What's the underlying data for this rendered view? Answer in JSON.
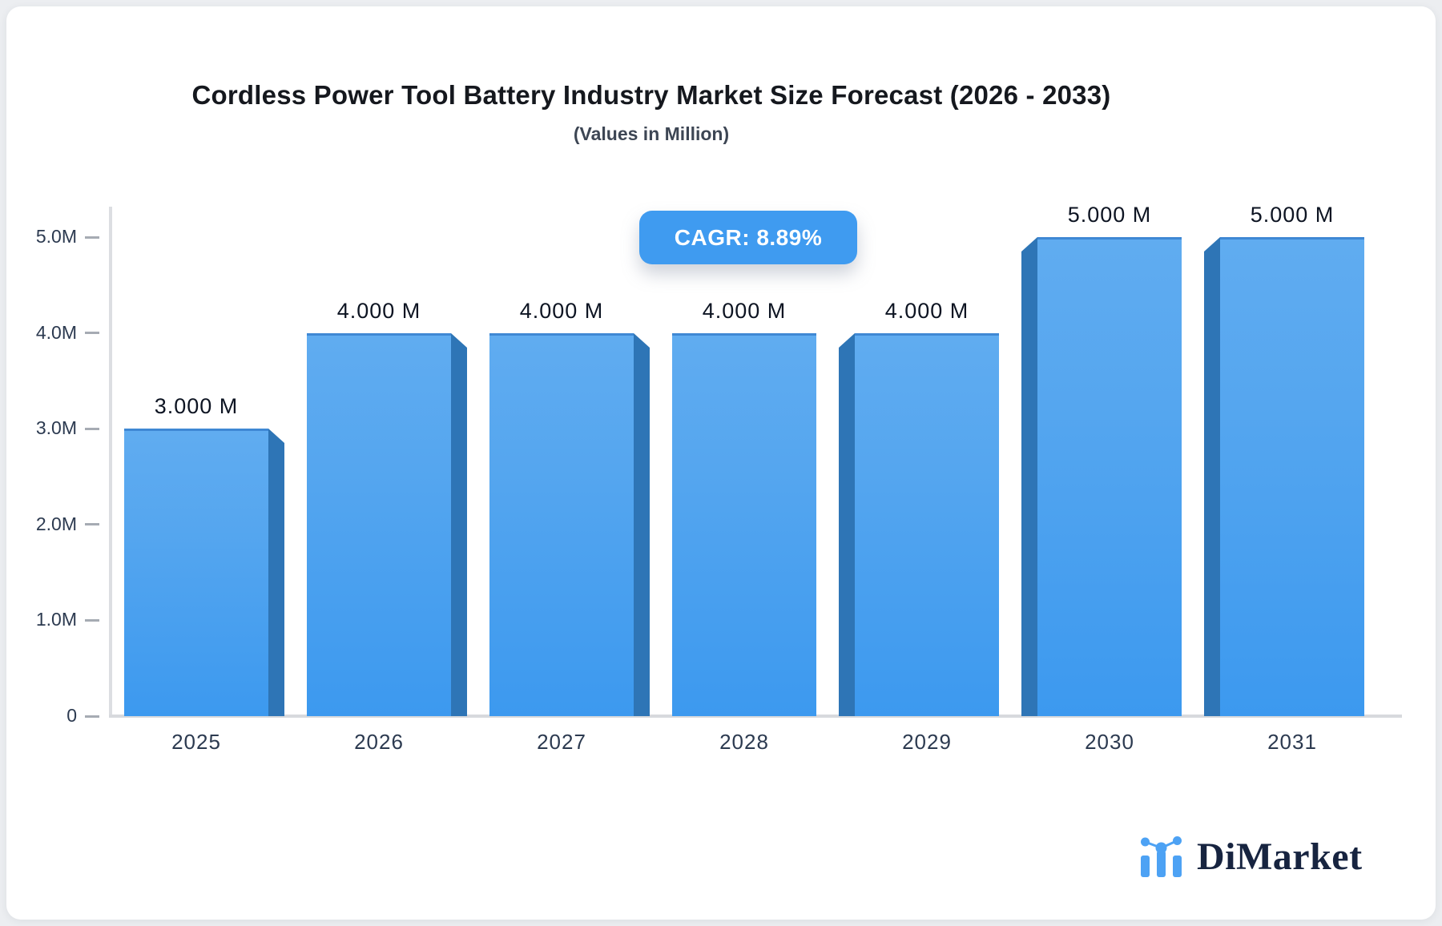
{
  "title": "Cordless Power Tool Battery Industry Market Size Forecast (2026 - 2033)",
  "subtitle": "(Values in Million)",
  "cagr_badge": "CAGR: 8.89%",
  "chart_data": {
    "type": "bar",
    "title": "Cordless Power Tool Battery Industry Market Size Forecast (2026 - 2033)",
    "subtitle": "(Values in Million)",
    "unit": "Million",
    "categories": [
      "2025",
      "2026",
      "2027",
      "2028",
      "2029",
      "2030",
      "2031"
    ],
    "values": [
      3.0,
      4.0,
      4.0,
      4.0,
      4.0,
      5.0,
      5.0
    ],
    "value_labels": [
      "3.000 M",
      "4.000 M",
      "4.000 M",
      "4.000 M",
      "4.000 M",
      "5.000 M",
      "5.000 M"
    ],
    "bar_3d_side": [
      "right",
      "right",
      "right",
      "none",
      "left",
      "left",
      "left"
    ],
    "ylim": [
      0,
      5
    ],
    "y_ticks": [
      {
        "label": "5.0M",
        "value": 5
      },
      {
        "label": "4.0M",
        "value": 4
      },
      {
        "label": "3.0M",
        "value": 3
      },
      {
        "label": "2.0M",
        "value": 2
      },
      {
        "label": "1.0M",
        "value": 1
      },
      {
        "label": "0",
        "value": 0
      }
    ],
    "grid": false,
    "legend": false,
    "annotations": [
      "CAGR: 8.89%"
    ]
  },
  "colors": {
    "bar_face_top": "#60acf0",
    "bar_face_bottom": "#3c99ef",
    "bar_side": "#2e75b6",
    "badge_background": "#3f9bf0",
    "badge_text": "#ffffff",
    "axis_line": "#d7d9dd",
    "axis_text": "#2c3a50",
    "logo_icon": "#4da2f4",
    "logo_text": "#172440"
  },
  "logo": {
    "brand": "DiMarket",
    "icon": "bar-chart-with-dots-icon"
  }
}
